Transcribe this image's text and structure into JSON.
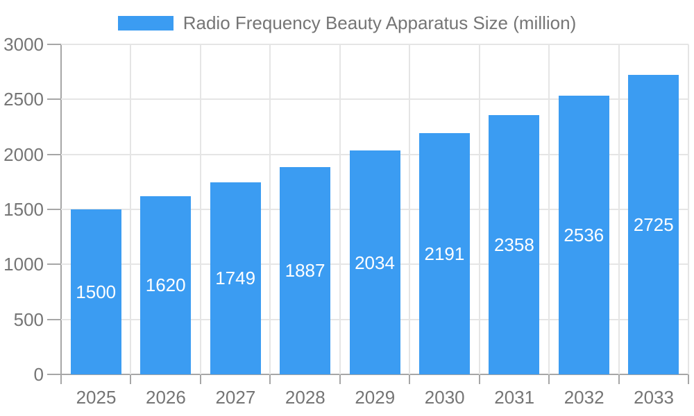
{
  "legend": {
    "label": "Radio Frequency Beauty Apparatus Size (million)"
  },
  "chart_data": {
    "type": "bar",
    "title": "Radio Frequency Beauty Apparatus Size (million)",
    "categories": [
      "2025",
      "2026",
      "2027",
      "2028",
      "2029",
      "2030",
      "2031",
      "2032",
      "2033"
    ],
    "values": [
      1500,
      1620,
      1749,
      1887,
      2034,
      2191,
      2358,
      2536,
      2725
    ],
    "xlabel": "",
    "ylabel": "",
    "ylim": [
      0,
      3000
    ],
    "yticks": [
      0,
      500,
      1000,
      1500,
      2000,
      2500,
      3000
    ],
    "grid": true,
    "legend_position": "top",
    "bar_labels_inside": true
  },
  "colors": {
    "bar": "#3b9cf2",
    "text": "#757575",
    "bar_label": "#ffffff",
    "grid": "#e5e5e5",
    "axis": "#a6a6a6",
    "background": "#ffffff"
  }
}
